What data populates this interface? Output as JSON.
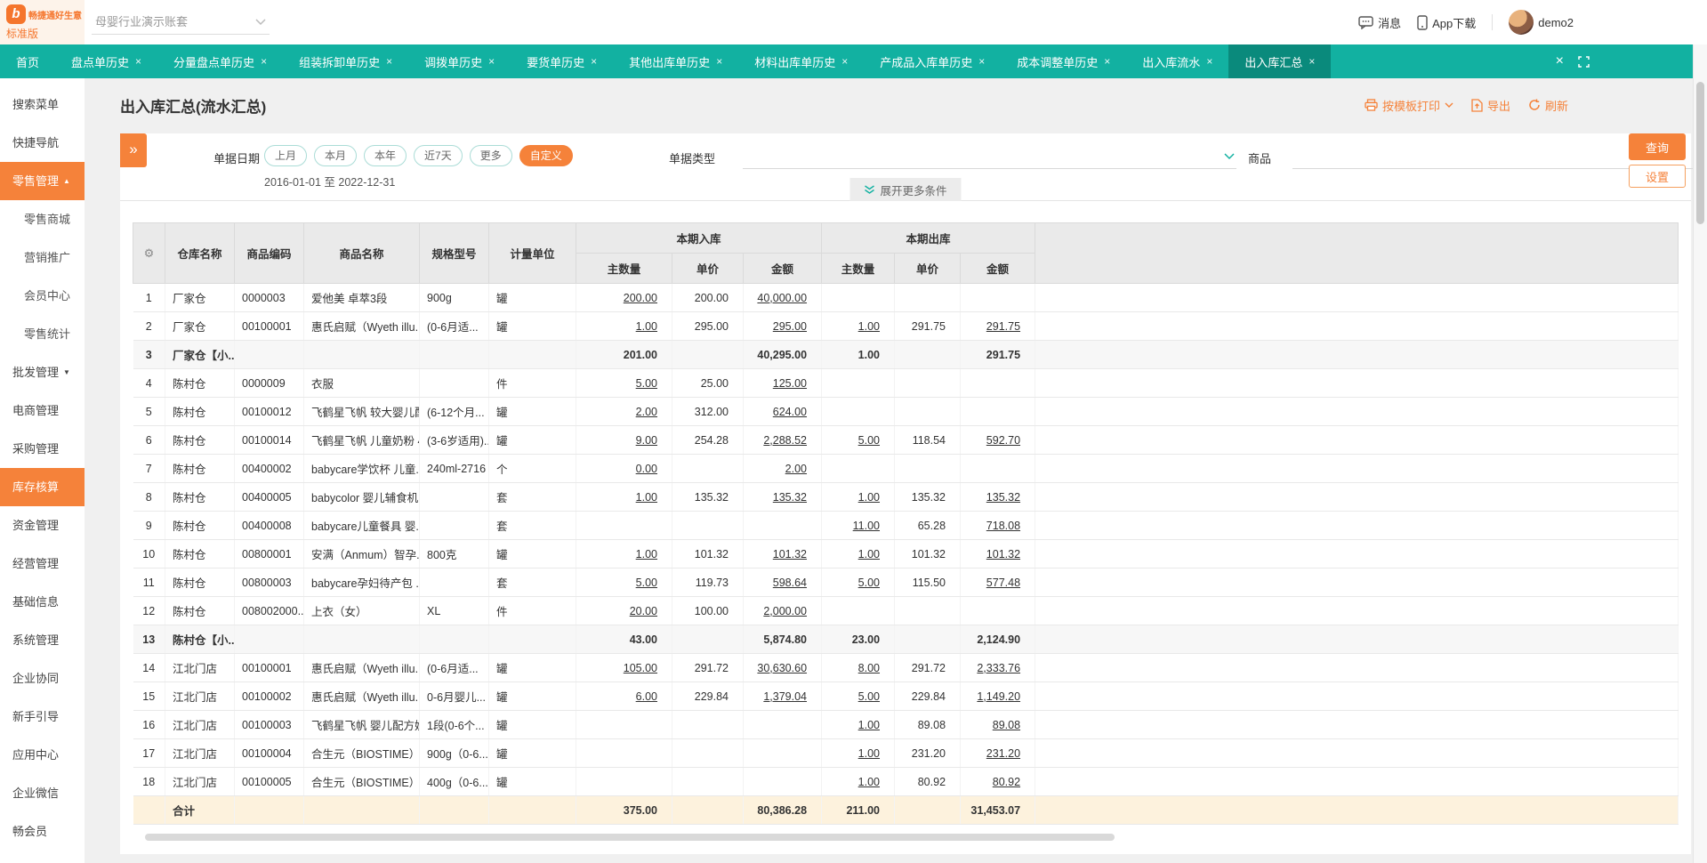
{
  "topbar": {
    "brand_name": "畅捷通好生意",
    "brand_edition": "标准版",
    "account": "母婴行业演示账套",
    "messages_label": "消息",
    "app_download_label": "App下载",
    "username": "demo2"
  },
  "icons": {
    "gear": "⚙",
    "collapse": "»",
    "close": "×",
    "ellipsis": "…",
    "logo_glyph": "b",
    "arrow_up": "▲",
    "arrow_down": "▼"
  },
  "tab_bar": {
    "tabs": [
      {
        "label": "首页",
        "closable": false,
        "active": false
      },
      {
        "label": "盘点单历史",
        "closable": true,
        "active": false
      },
      {
        "label": "分量盘点单历史",
        "closable": true,
        "active": false
      },
      {
        "label": "组装拆卸单历史",
        "closable": true,
        "active": false
      },
      {
        "label": "调拨单历史",
        "closable": true,
        "active": false
      },
      {
        "label": "要货单历史",
        "closable": true,
        "active": false
      },
      {
        "label": "其他出库单历史",
        "closable": true,
        "active": false
      },
      {
        "label": "材料出库单历史",
        "closable": true,
        "active": false
      },
      {
        "label": "产成品入库单历史",
        "closable": true,
        "active": false
      },
      {
        "label": "成本调整单历史",
        "closable": true,
        "active": false
      },
      {
        "label": "出入库流水",
        "closable": true,
        "active": false
      },
      {
        "label": "出入库汇总",
        "closable": true,
        "active": true
      }
    ]
  },
  "sidebar": {
    "items": [
      {
        "label": "搜索菜单",
        "variant": "top"
      },
      {
        "label": "快捷导航",
        "variant": "top"
      },
      {
        "label": "零售管理",
        "variant": "parent-active",
        "arrow": "up"
      },
      {
        "label": "零售商城",
        "variant": "sub"
      },
      {
        "label": "营销推广",
        "variant": "sub"
      },
      {
        "label": "会员中心",
        "variant": "sub"
      },
      {
        "label": "零售统计",
        "variant": "sub"
      },
      {
        "label": "批发管理",
        "variant": "top",
        "arrow": "down"
      },
      {
        "label": "电商管理",
        "variant": "top"
      },
      {
        "label": "采购管理",
        "variant": "top"
      },
      {
        "label": "库存核算",
        "variant": "active"
      },
      {
        "label": "资金管理",
        "variant": "top"
      },
      {
        "label": "经营管理",
        "variant": "top"
      },
      {
        "label": "基础信息",
        "variant": "top"
      },
      {
        "label": "系统管理",
        "variant": "top"
      },
      {
        "label": "企业协同",
        "variant": "top"
      },
      {
        "label": "新手引导",
        "variant": "top"
      },
      {
        "label": "应用中心",
        "variant": "top"
      },
      {
        "label": "企业微信",
        "variant": "top"
      },
      {
        "label": "畅会员",
        "variant": "top"
      }
    ]
  },
  "page": {
    "title": "出入库汇总(流水汇总)",
    "print_label": "按模板打印",
    "export_label": "导出",
    "refresh_label": "刷新"
  },
  "filters": {
    "date_label": "单据日期",
    "date_pills": [
      "上月",
      "本月",
      "本年",
      "近7天",
      "更多"
    ],
    "custom_pill": "自定义",
    "date_range": "2016-01-01 至 2022-12-31",
    "doc_type_label": "单据类型",
    "product_label": "商品",
    "query_button": "查询",
    "settings_button": "设置",
    "expand_more": "展开更多条件"
  },
  "table": {
    "header": {
      "warehouse": "仓库名称",
      "code": "商品编码",
      "name": "商品名称",
      "spec": "规格型号",
      "unit": "计量单位",
      "in_group": "本期入库",
      "out_group": "本期出库",
      "qty": "主数量",
      "price": "单价",
      "amount": "金额"
    },
    "rows": [
      {
        "no": "1",
        "type": "data",
        "warehouse": "厂家仓",
        "code": "0000003",
        "name": "爱他美 卓萃3段",
        "spec": "900g",
        "unit": "罐",
        "in_qty": "200.00",
        "in_price": "200.00",
        "in_amount": "40,000.00",
        "out_qty": "",
        "out_price": "",
        "out_amount": ""
      },
      {
        "no": "2",
        "type": "data",
        "warehouse": "厂家仓",
        "code": "00100001",
        "name": "惠氏启赋（Wyeth illu...",
        "spec": "(0-6月适...",
        "unit": "罐",
        "in_qty": "1.00",
        "in_price": "295.00",
        "in_amount": "295.00",
        "out_qty": "1.00",
        "out_price": "291.75",
        "out_amount": "291.75"
      },
      {
        "no": "3",
        "type": "subtotal",
        "warehouse": "厂家仓【小...",
        "code": "",
        "name": "",
        "spec": "",
        "unit": "",
        "in_qty": "201.00",
        "in_price": "",
        "in_amount": "40,295.00",
        "out_qty": "1.00",
        "out_price": "",
        "out_amount": "291.75"
      },
      {
        "no": "4",
        "type": "data",
        "warehouse": "陈村仓",
        "code": "0000009",
        "name": "衣服",
        "spec": "",
        "unit": "件",
        "in_qty": "5.00",
        "in_price": "25.00",
        "in_amount": "125.00",
        "out_qty": "",
        "out_price": "",
        "out_amount": ""
      },
      {
        "no": "5",
        "type": "data",
        "warehouse": "陈村仓",
        "code": "00100012",
        "name": "飞鹤星飞帆 较大婴儿配...",
        "spec": "(6-12个月...",
        "unit": "罐",
        "in_qty": "2.00",
        "in_price": "312.00",
        "in_amount": "624.00",
        "out_qty": "",
        "out_price": "",
        "out_amount": ""
      },
      {
        "no": "6",
        "type": "data",
        "warehouse": "陈村仓",
        "code": "00100014",
        "name": "飞鹤星飞帆 儿童奶粉 4...",
        "spec": "(3-6岁适用)...",
        "unit": "罐",
        "in_qty": "9.00",
        "in_price": "254.28",
        "in_amount": "2,288.52",
        "out_qty": "5.00",
        "out_price": "118.54",
        "out_amount": "592.70"
      },
      {
        "no": "7",
        "type": "data",
        "warehouse": "陈村仓",
        "code": "00400002",
        "name": "babycare学饮杯 儿童...",
        "spec": "240ml-2716",
        "unit": "个",
        "in_qty": "0.00",
        "in_price": "",
        "in_amount": "2.00",
        "out_qty": "",
        "out_price": "",
        "out_amount": ""
      },
      {
        "no": "8",
        "type": "data",
        "warehouse": "陈村仓",
        "code": "00400005",
        "name": "babycolor 婴儿辅食机 ...",
        "spec": "",
        "unit": "套",
        "in_qty": "1.00",
        "in_price": "135.32",
        "in_amount": "135.32",
        "out_qty": "1.00",
        "out_price": "135.32",
        "out_amount": "135.32"
      },
      {
        "no": "9",
        "type": "data",
        "warehouse": "陈村仓",
        "code": "00400008",
        "name": "babycare儿童餐具 婴...",
        "spec": "",
        "unit": "套",
        "in_qty": "",
        "in_price": "",
        "in_amount": "",
        "out_qty": "11.00",
        "out_price": "65.28",
        "out_amount": "718.08"
      },
      {
        "no": "10",
        "type": "data",
        "warehouse": "陈村仓",
        "code": "00800001",
        "name": "安满（Anmum）智孕...",
        "spec": "800克",
        "unit": "罐",
        "in_qty": "1.00",
        "in_price": "101.32",
        "in_amount": "101.32",
        "out_qty": "1.00",
        "out_price": "101.32",
        "out_amount": "101.32"
      },
      {
        "no": "11",
        "type": "data",
        "warehouse": "陈村仓",
        "code": "00800003",
        "name": "babycare孕妇待产包 ...",
        "spec": "",
        "unit": "套",
        "in_qty": "5.00",
        "in_price": "119.73",
        "in_amount": "598.64",
        "out_qty": "5.00",
        "out_price": "115.50",
        "out_amount": "577.48"
      },
      {
        "no": "12",
        "type": "data",
        "warehouse": "陈村仓",
        "code": "008002000...",
        "name": "上衣（女）",
        "spec": "XL",
        "unit": "件",
        "in_qty": "20.00",
        "in_price": "100.00",
        "in_amount": "2,000.00",
        "out_qty": "",
        "out_price": "",
        "out_amount": ""
      },
      {
        "no": "13",
        "type": "subtotal",
        "warehouse": "陈村仓【小...",
        "code": "",
        "name": "",
        "spec": "",
        "unit": "",
        "in_qty": "43.00",
        "in_price": "",
        "in_amount": "5,874.80",
        "out_qty": "23.00",
        "out_price": "",
        "out_amount": "2,124.90"
      },
      {
        "no": "14",
        "type": "data",
        "warehouse": "江北门店",
        "code": "00100001",
        "name": "惠氏启赋（Wyeth illu...",
        "spec": "(0-6月适...",
        "unit": "罐",
        "in_qty": "105.00",
        "in_price": "291.72",
        "in_amount": "30,630.60",
        "out_qty": "8.00",
        "out_price": "291.72",
        "out_amount": "2,333.76"
      },
      {
        "no": "15",
        "type": "data",
        "warehouse": "江北门店",
        "code": "00100002",
        "name": "惠氏启赋（Wyeth illu...",
        "spec": "0-6月婴儿...",
        "unit": "罐",
        "in_qty": "6.00",
        "in_price": "229.84",
        "in_amount": "1,379.04",
        "out_qty": "5.00",
        "out_price": "229.84",
        "out_amount": "1,149.20"
      },
      {
        "no": "16",
        "type": "data",
        "warehouse": "江北门店",
        "code": "00100003",
        "name": "飞鹤星飞帆 婴儿配方奶...",
        "spec": "1段(0-6个...",
        "unit": "罐",
        "in_qty": "",
        "in_price": "",
        "in_amount": "",
        "out_qty": "1.00",
        "out_price": "89.08",
        "out_amount": "89.08"
      },
      {
        "no": "17",
        "type": "data",
        "warehouse": "江北门店",
        "code": "00100004",
        "name": "合生元（BIOSTIME）...",
        "spec": "900g（0-6...",
        "unit": "罐",
        "in_qty": "",
        "in_price": "",
        "in_amount": "",
        "out_qty": "1.00",
        "out_price": "231.20",
        "out_amount": "231.20"
      },
      {
        "no": "18",
        "type": "data",
        "warehouse": "江北门店",
        "code": "00100005",
        "name": "合生元（BIOSTIME）...",
        "spec": "400g（0-6...",
        "unit": "罐",
        "in_qty": "",
        "in_price": "",
        "in_amount": "",
        "out_qty": "1.00",
        "out_price": "80.92",
        "out_amount": "80.92"
      }
    ],
    "total_row": {
      "label": "合计",
      "in_qty": "375.00",
      "in_amount": "80,386.28",
      "out_qty": "211.00",
      "out_amount": "31,453.07"
    }
  },
  "colors": {
    "teal": "#12b1a1",
    "teal_dark": "#0a8a7c",
    "orange": "#f5823a",
    "total_row_bg": "#fdf2dd"
  }
}
